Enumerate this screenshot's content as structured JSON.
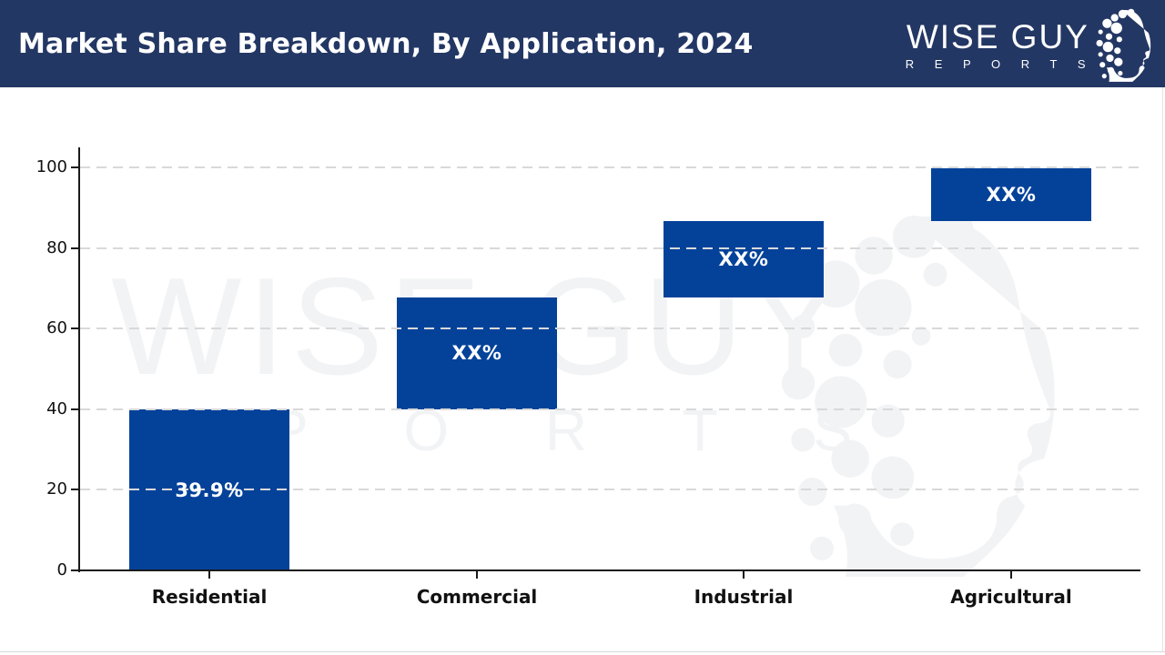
{
  "header": {
    "title": "Market Share Breakdown, By Application, 2024",
    "logo": {
      "line1": "WISE GUY",
      "line2": "R E P O R T S"
    }
  },
  "watermark": {
    "line1": "WISE GUY",
    "line2": "P O R T S"
  },
  "chart_data": {
    "type": "bar",
    "subtype": "waterfall",
    "title": "Market Share Breakdown, By Application, 2024",
    "categories": [
      "Residential",
      "Commercial",
      "Industrial",
      "Agricultural"
    ],
    "segments": [
      {
        "start": 0,
        "end": 39.9
      },
      {
        "start": 39.9,
        "end": 67.8
      },
      {
        "start": 67.8,
        "end": 86.7
      },
      {
        "start": 86.7,
        "end": 99.7
      }
    ],
    "bar_labels": [
      "39.9%",
      "XX%",
      "XX%",
      "XX%"
    ],
    "yticks": [
      0,
      20,
      40,
      60,
      80,
      100
    ],
    "ylim": [
      0,
      105
    ],
    "xlabel": "",
    "ylabel": "",
    "legend": "none",
    "grid": "horizontal-dashed",
    "bar_color": "#04429a",
    "bar_label_color": "#ffffff",
    "gridline_color": "#d9d9d9",
    "axis_color": "#1a1a1a",
    "header_bg": "#233764",
    "watermark_color": "#f2f3f5"
  }
}
